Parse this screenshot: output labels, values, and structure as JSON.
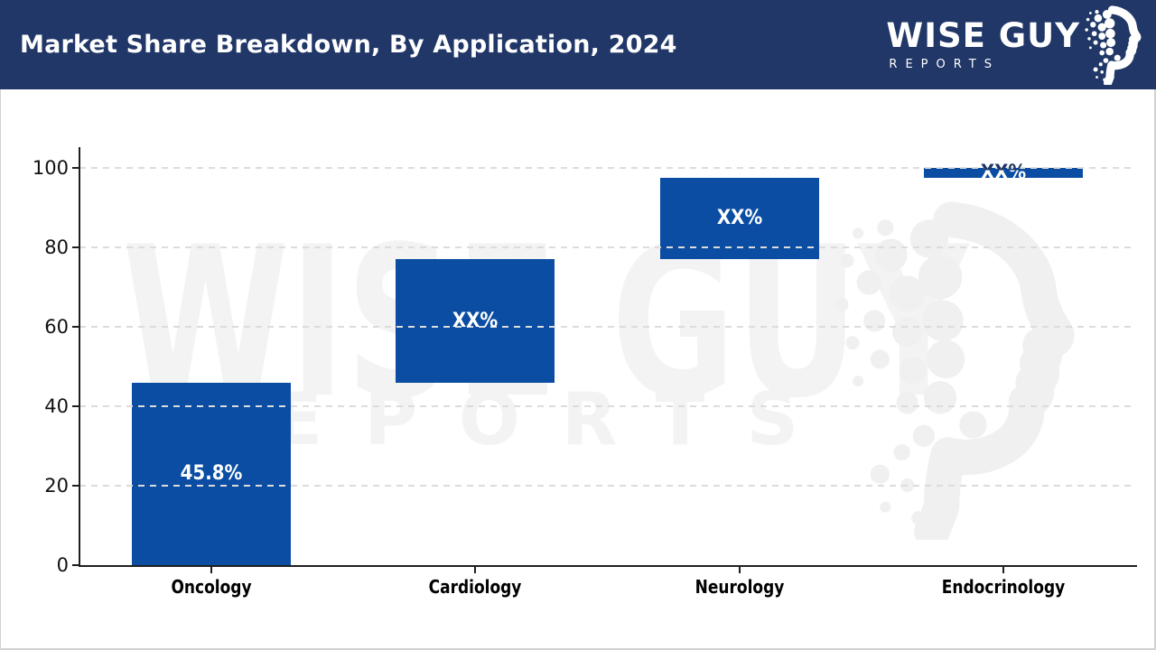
{
  "header": {
    "title": "Market Share Breakdown, By Application, 2024",
    "logo": {
      "brand": "WISE GUY",
      "sub": "REPORTS"
    }
  },
  "watermark": {
    "brand": "WISE GUY",
    "sub": "REPORTS"
  },
  "chart_data": {
    "type": "bar",
    "subtype": "waterfall",
    "title": "Market Share Breakdown, By Application, 2024",
    "categories": [
      "Oncology",
      "Cardiology",
      "Neurology",
      "Endocrinology"
    ],
    "segments": [
      {
        "category": "Oncology",
        "start": 0,
        "end": 45.8,
        "label": "45.8%"
      },
      {
        "category": "Cardiology",
        "start": 45.8,
        "end": 77.0,
        "label": "XX%"
      },
      {
        "category": "Neurology",
        "start": 77.0,
        "end": 97.5,
        "label": "XX%"
      },
      {
        "category": "Endocrinology",
        "start": 97.5,
        "end": 100,
        "label": "XX%"
      }
    ],
    "yticks": [
      0,
      20,
      40,
      60,
      80,
      100
    ],
    "ylim": [
      0,
      105
    ],
    "xlabel": "",
    "ylabel": "",
    "grid": "horizontal-dashed",
    "legend": "none",
    "bar_color": "#0b4da2",
    "bar_label_color": "#ffffff"
  },
  "colors": {
    "header_bg": "#203768",
    "bar": "#0b4da2",
    "grid": "#dcdcdc",
    "axis": "#1f1f1f",
    "watermark": "#f2f2f2",
    "label_overflow_navy": "#1c3562",
    "page_border": "#d2d2d2"
  }
}
